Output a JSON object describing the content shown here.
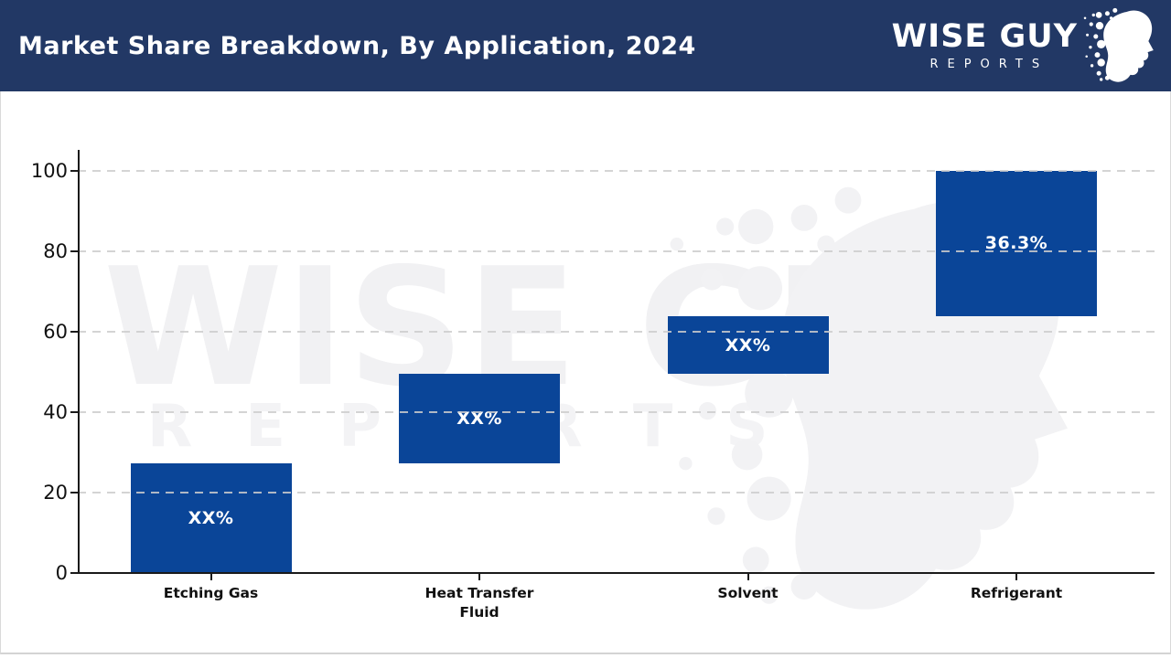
{
  "header": {
    "title": "Market Share Breakdown, By Application, 2024",
    "logo": {
      "line1": "WISE GUY",
      "line2": "REPORTS"
    }
  },
  "icons": {
    "logo_head": "dot-face-profile-icon"
  },
  "watermark": {
    "line1": "WISE GUY",
    "line2": "REPORTS"
  },
  "colors": {
    "header_bg": "#223865",
    "bar": "#0a4598",
    "bar_label": "#ffffff",
    "grid": "#cdcdcd",
    "axis": "#1a1a1a",
    "watermark": "#f1f1f3"
  },
  "chart_data": {
    "type": "bar",
    "subtype": "waterfall-floating-bars",
    "title": "Market Share Breakdown, By Application, 2024",
    "xlabel": "",
    "ylabel": "",
    "ylim": [
      0,
      100
    ],
    "yticks": [
      0,
      20,
      40,
      60,
      80,
      100
    ],
    "grid": "horizontal-dashed-over-bars",
    "legend": "none",
    "categories": [
      "Etching Gas",
      "Heat Transfer\nFluid",
      "Solvent",
      "Refrigerant"
    ],
    "bars": [
      {
        "category": "Etching Gas",
        "start": 0,
        "end": 27.2,
        "height": 27.2,
        "label": "XX%"
      },
      {
        "category": "Heat Transfer Fluid",
        "start": 27.2,
        "end": 49.4,
        "height": 22.2,
        "label": "XX%"
      },
      {
        "category": "Solvent",
        "start": 49.4,
        "end": 63.7,
        "height": 14.3,
        "label": "XX%"
      },
      {
        "category": "Refrigerant",
        "start": 63.7,
        "end": 100,
        "height": 36.3,
        "label": "36.3%"
      }
    ]
  }
}
